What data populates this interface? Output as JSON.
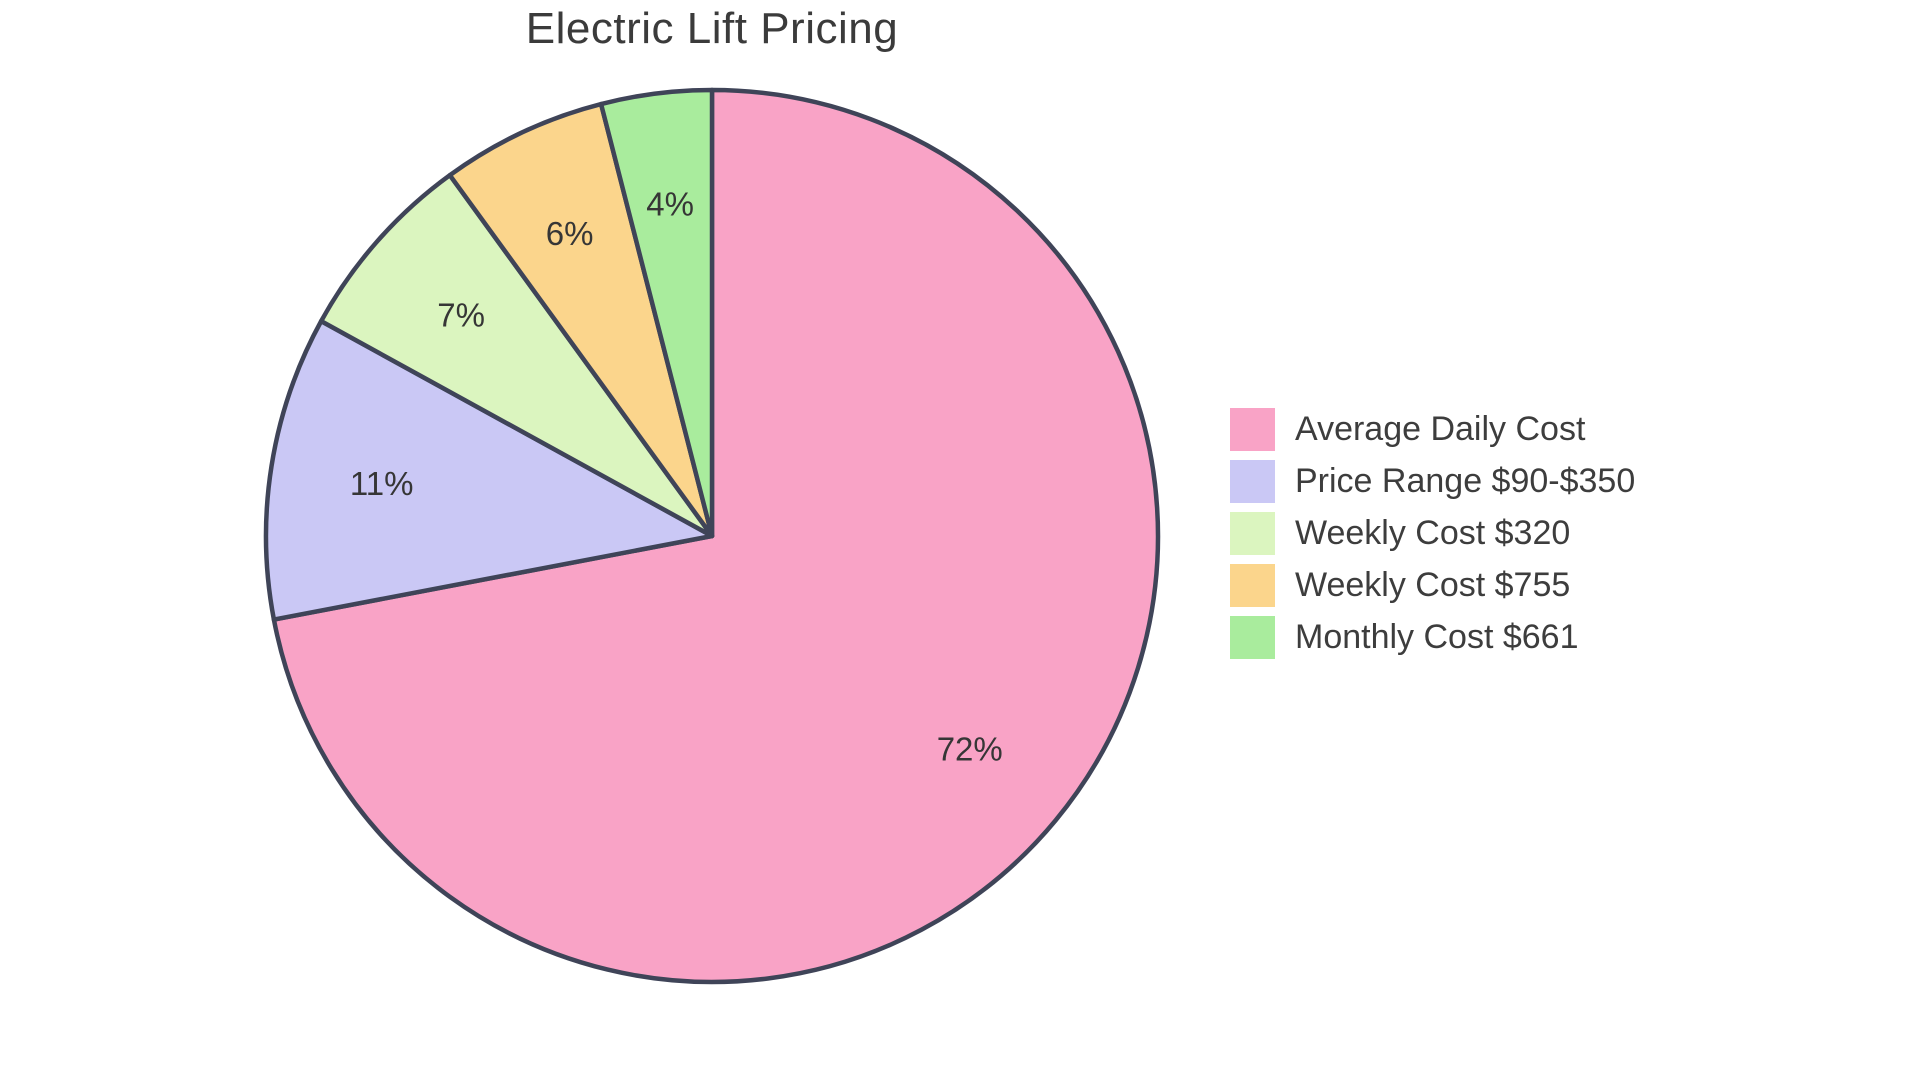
{
  "chart_data": {
    "type": "pie",
    "title": "Electric Lift Pricing",
    "slices": [
      {
        "label": "Average Daily Cost",
        "value": 72,
        "pct_label": "72%",
        "color": "#F9A3C6"
      },
      {
        "label": "Price Range $90-$350",
        "value": 11,
        "pct_label": "11%",
        "color": "#CAC8F5"
      },
      {
        "label": "Weekly Cost $320",
        "value": 7,
        "pct_label": "7%",
        "color": "#DBF5BF"
      },
      {
        "label": "Weekly Cost $755",
        "value": 6,
        "pct_label": "6%",
        "color": "#FBD58C"
      },
      {
        "label": "Monthly Cost $661",
        "value": 4,
        "pct_label": "4%",
        "color": "#A9EC9D"
      }
    ],
    "start_angle": "top",
    "direction": "clockwise",
    "legend_position": "right",
    "background_color": "#FFFFFF",
    "wedge_outline_color": "#3F4458",
    "percent_label_color": "#363636",
    "title_color": "#3B3B3B",
    "legend_text_color": "#3D3D3D"
  }
}
